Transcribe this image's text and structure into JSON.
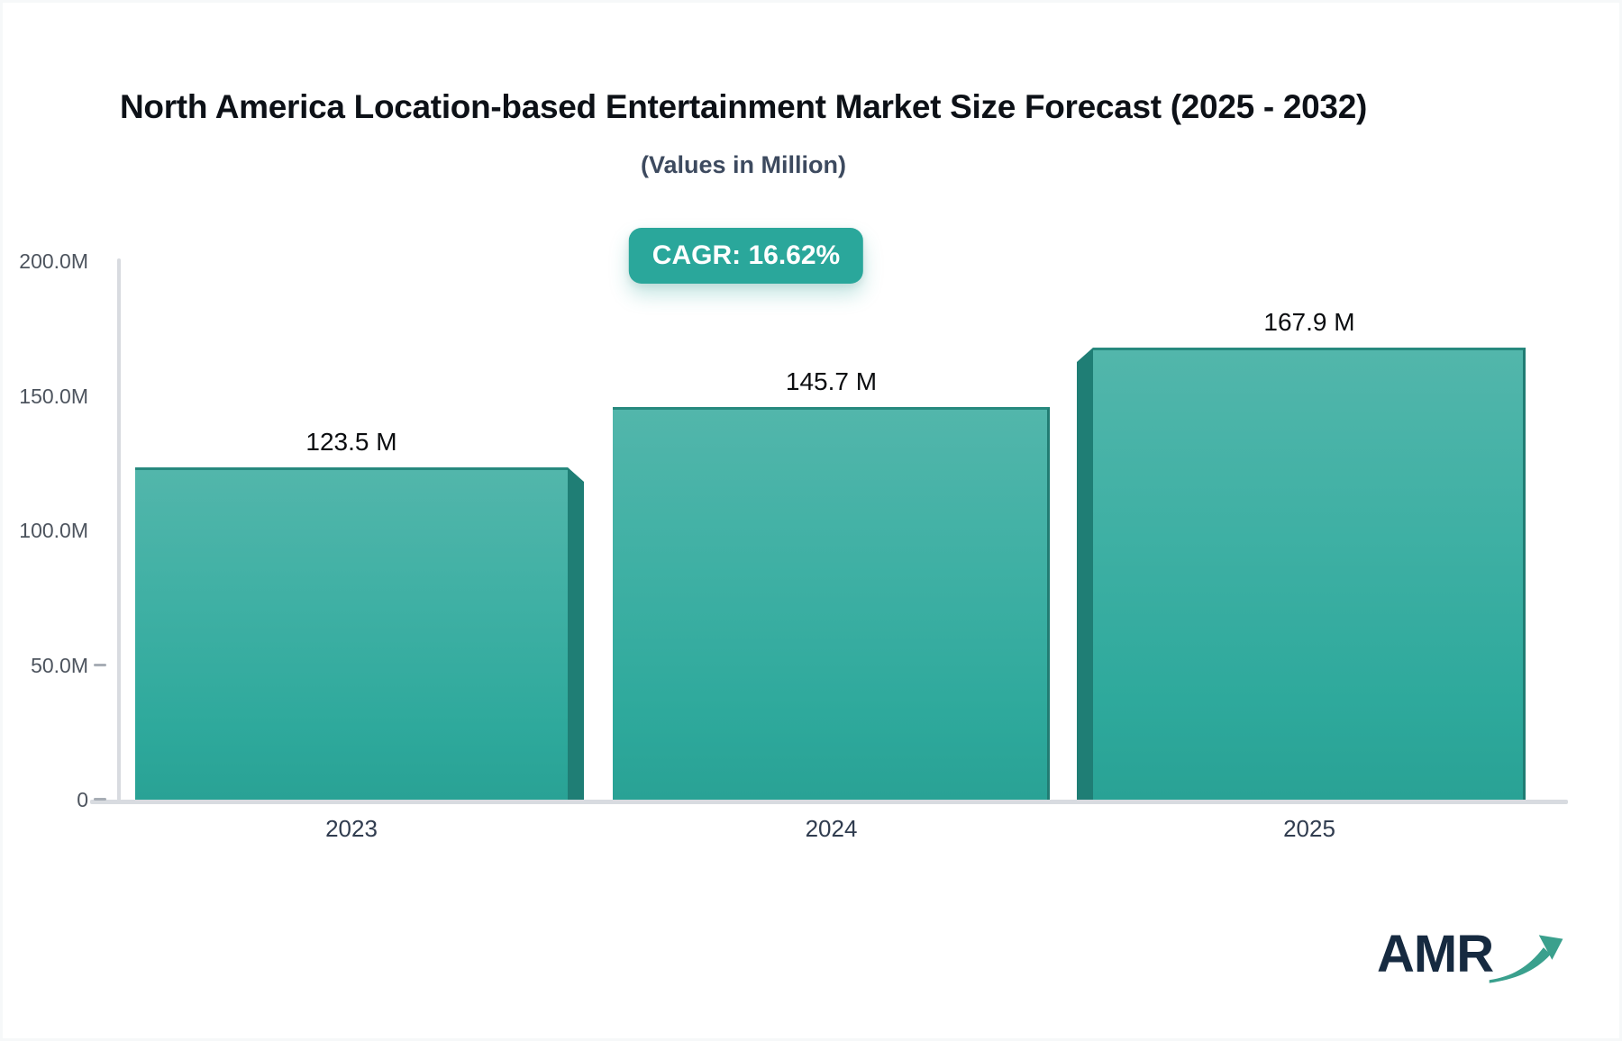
{
  "header": {
    "title": "North America Location-based Entertainment Market Size Forecast (2025 - 2032)",
    "subtitle": "(Values in Million)",
    "cagr_badge_label": "CAGR: 16.62%"
  },
  "logo": {
    "text": "AMR",
    "arrow_icon": "growth-arrow-icon"
  },
  "colors": {
    "accent_teal": "#2aa79b",
    "bar_gradient_top": "#52b6ab",
    "bar_gradient_bottom": "#29a295",
    "bar_side_dark": "#1f7e75",
    "bar_top_border": "#27897e",
    "axis_gray": "#d8dbe0",
    "title_text": "#0d1117",
    "subtitle_text": "#3d4a5f",
    "logo_navy": "#162a40"
  },
  "chart_data": {
    "type": "bar",
    "title": "North America Location-based Entertainment Market Size Forecast (2025 - 2032)",
    "subtitle": "(Values in Million)",
    "unit": "Million",
    "categories": [
      "2023",
      "2024",
      "2025"
    ],
    "values": [
      123.5,
      145.7,
      167.9
    ],
    "value_labels": [
      "123.5 M",
      "145.7 M",
      "167.9 M"
    ],
    "cagr_percent": 16.62,
    "ylabel": "",
    "xlabel": "",
    "ylim": [
      0,
      200
    ],
    "y_tick_labels": [
      "200.0M",
      "150.0M",
      "100.0M",
      "50.0M",
      "0"
    ],
    "y_tick_values": [
      200,
      150,
      100,
      50,
      0
    ],
    "grid": false,
    "legend": "none",
    "bar_style": "3d-extruded-teal-gradient"
  }
}
